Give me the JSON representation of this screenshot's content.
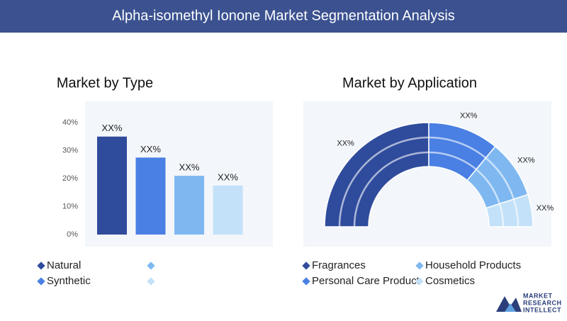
{
  "page_title": "Alpha-isomethyl Ionone Market Segmentation Analysis",
  "chart_data": [
    {
      "type": "bar",
      "title": "Market by Type",
      "categories": [
        "Natural",
        "Synthetic",
        null,
        null
      ],
      "values": [
        35,
        27.5,
        21,
        17.5
      ],
      "value_labels": [
        "XX%",
        "XX%",
        "XX%",
        "XX%"
      ],
      "colors": [
        "#2f4b9c",
        "#4a80e3",
        "#7fb8f1",
        "#c3e1f8"
      ],
      "ylim": [
        0,
        40
      ],
      "yticks": [
        {
          "value": 0,
          "label": "0%"
        },
        {
          "value": 10,
          "label": "10%"
        },
        {
          "value": 20,
          "label": "20%"
        },
        {
          "value": 30,
          "label": "30%"
        },
        {
          "value": 40,
          "label": "40%"
        }
      ]
    },
    {
      "type": "pie",
      "title": "Market by Application",
      "semicircle": true,
      "categories": [
        "Fragrances",
        "Personal Care Product",
        "Household Products",
        "Cosmetics"
      ],
      "values": [
        50,
        22,
        18,
        10
      ],
      "value_labels": [
        "XX%",
        "XX%",
        "XX%",
        "XX%"
      ],
      "colors": [
        "#2f4b9c",
        "#4a80e3",
        "#7fb8f1",
        "#c3e1f8"
      ]
    }
  ],
  "logo": [
    "MARKET",
    "RESEARCH",
    "INTELLECT"
  ]
}
